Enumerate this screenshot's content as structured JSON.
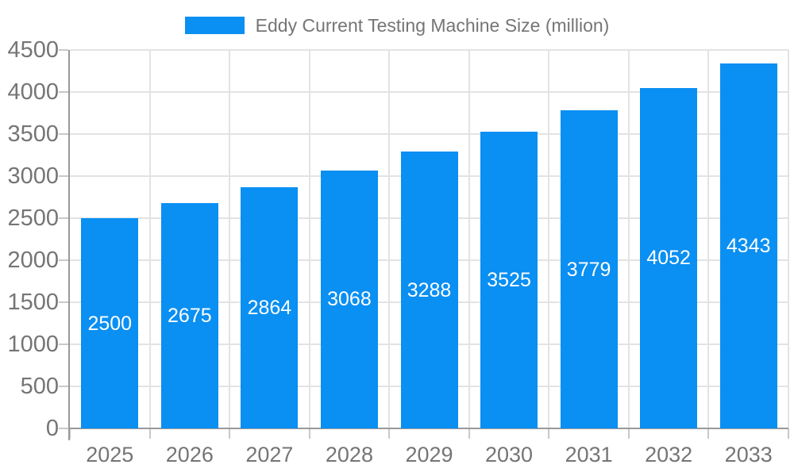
{
  "colors": {
    "bar": "#0a8ff2",
    "legend_text": "#757575",
    "axis_label": "#757575",
    "grid_line": "#e3e3e3",
    "axis_line": "#999999",
    "tick": "#c9c9c9",
    "value_label": "#ffffff",
    "background": "#ffffff"
  },
  "chart_data": {
    "type": "bar",
    "title": "",
    "legend": [
      "Eddy Current Testing Machine Size (million)"
    ],
    "legend_position": "top-center",
    "categories": [
      "2025",
      "2026",
      "2027",
      "2028",
      "2029",
      "2030",
      "2031",
      "2032",
      "2033"
    ],
    "series": [
      {
        "name": "Eddy Current Testing Machine Size (million)",
        "color": "#0a8ff2",
        "values": [
          2500,
          2675,
          2864,
          3068,
          3288,
          3525,
          3779,
          4052,
          4343
        ]
      }
    ],
    "value_labels": {
      "visible": true,
      "position": "inside-center",
      "color": "#ffffff"
    },
    "xlabel": "",
    "ylabel": "",
    "ylim": [
      0,
      4500
    ],
    "yticks": [
      0,
      500,
      1000,
      1500,
      2000,
      2500,
      3000,
      3500,
      4000,
      4500
    ],
    "grid": {
      "horizontal": true,
      "vertical": true
    }
  }
}
